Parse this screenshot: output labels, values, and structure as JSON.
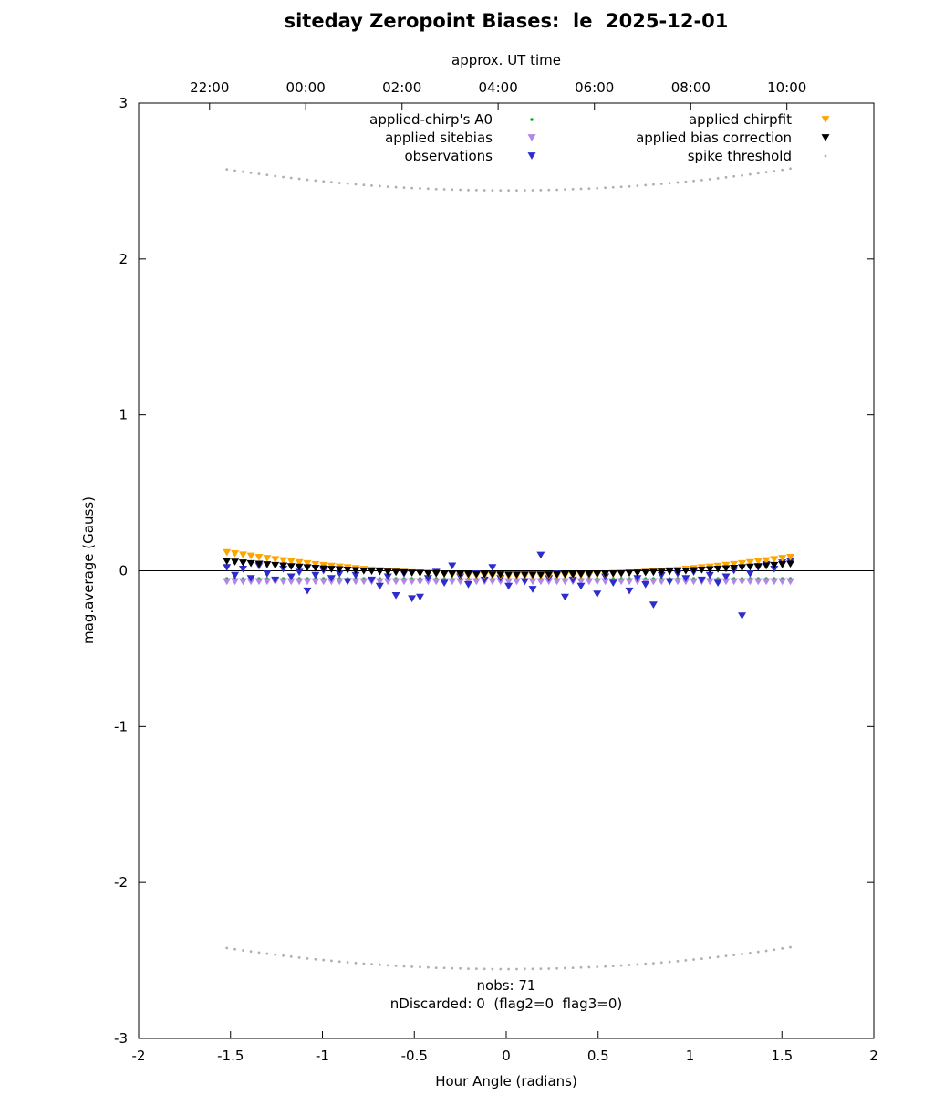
{
  "chart_data": {
    "type": "scatter",
    "title": "siteday Zeropoint Biases:  le  2025-12-01",
    "top_axis": {
      "label": "approx. UT time",
      "ticks": [
        {
          "label": "22:00",
          "x": -1.614
        },
        {
          "label": "00:00",
          "x": -1.091
        },
        {
          "label": "02:00",
          "x": -0.567
        },
        {
          "label": "04:00",
          "x": -0.044
        },
        {
          "label": "06:00",
          "x": 0.48
        },
        {
          "label": "08:00",
          "x": 1.004
        },
        {
          "label": "10:00",
          "x": 1.527
        }
      ]
    },
    "x_axis": {
      "label": "Hour Angle (radians)",
      "min": -2,
      "max": 2,
      "ticks": [
        -2,
        -1.5,
        -1,
        -0.5,
        0,
        0.5,
        1,
        1.5,
        2
      ],
      "tick_labels": [
        "-2",
        "-1.5",
        "-1",
        "-0.5",
        "0",
        "0.5",
        "1",
        "1.5",
        "2"
      ]
    },
    "y_axis": {
      "label": "mag.average (Gauss)",
      "min": -3,
      "max": 3,
      "ticks": [
        -3,
        -2,
        -1,
        0,
        1,
        2,
        3
      ],
      "tick_labels": [
        "-3",
        "-2",
        "-1",
        "0",
        "1",
        "2",
        "3"
      ]
    },
    "zero_line": true,
    "grid": false,
    "stats": {
      "nobs": 71,
      "nDiscarded": 0,
      "flag2": 0,
      "flag3": 0
    },
    "annotations": [
      "nobs: 71",
      "nDiscarded: 0  (flag2=0  flag3=0)"
    ],
    "x": [
      -1.52,
      -1.476,
      -1.432,
      -1.389,
      -1.345,
      -1.301,
      -1.257,
      -1.213,
      -1.17,
      -1.126,
      -1.082,
      -1.038,
      -0.994,
      -0.951,
      -0.907,
      -0.863,
      -0.819,
      -0.775,
      -0.732,
      -0.688,
      -0.644,
      -0.6,
      -0.556,
      -0.513,
      -0.469,
      -0.425,
      -0.381,
      -0.337,
      -0.294,
      -0.25,
      -0.206,
      -0.162,
      -0.118,
      -0.075,
      -0.031,
      0.013,
      0.057,
      0.101,
      0.144,
      0.188,
      0.232,
      0.276,
      0.32,
      0.363,
      0.407,
      0.451,
      0.495,
      0.539,
      0.582,
      0.626,
      0.67,
      0.714,
      0.758,
      0.801,
      0.845,
      0.889,
      0.933,
      0.977,
      1.02,
      1.064,
      1.108,
      1.152,
      1.196,
      1.239,
      1.283,
      1.327,
      1.371,
      1.415,
      1.458,
      1.502,
      1.546
    ],
    "series": [
      {
        "id": "a0",
        "name": "applied-chirp's A0",
        "marker": "dot",
        "color": "#00b400",
        "size": 1.7,
        "legend_column": 1,
        "y_const": -0.05
      },
      {
        "id": "sitebias",
        "name": "applied sitebias",
        "marker": "triangle-down",
        "color": "#b285ea",
        "size": 4.5,
        "legend_column": 1,
        "y_const": -0.07
      },
      {
        "id": "observations",
        "name": "observations",
        "marker": "triangle-down",
        "color": "#2d2dcc",
        "size": 4.5,
        "legend_column": 1,
        "y": [
          0.02,
          -0.03,
          0.01,
          -0.05,
          0.03,
          -0.02,
          -0.06,
          0.01,
          -0.04,
          -0.01,
          -0.13,
          -0.03,
          0.0,
          -0.05,
          -0.02,
          -0.07,
          -0.03,
          0.0,
          -0.06,
          -0.1,
          -0.04,
          -0.16,
          -0.02,
          -0.18,
          -0.17,
          -0.05,
          -0.01,
          -0.08,
          0.03,
          -0.04,
          -0.09,
          -0.02,
          -0.06,
          0.02,
          -0.05,
          -0.1,
          -0.03,
          -0.07,
          -0.12,
          0.1,
          -0.05,
          -0.02,
          -0.17,
          -0.06,
          -0.1,
          -0.03,
          -0.15,
          -0.04,
          -0.08,
          -0.02,
          -0.13,
          -0.05,
          -0.09,
          -0.22,
          -0.03,
          -0.07,
          -0.02,
          -0.05,
          -0.01,
          -0.06,
          -0.03,
          -0.08,
          -0.04,
          0.0,
          -0.29,
          -0.02,
          0.02,
          0.04,
          0.01,
          0.05,
          0.06
        ]
      },
      {
        "id": "chirpfit",
        "name": "applied chirpfit",
        "marker": "triangle-down",
        "color": "#ffa500",
        "size": 4.5,
        "legend_column": 2,
        "y": [
          0.117,
          0.109,
          0.101,
          0.094,
          0.086,
          0.079,
          0.072,
          0.065,
          0.059,
          0.052,
          0.046,
          0.04,
          0.034,
          0.029,
          0.024,
          0.019,
          0.014,
          0.009,
          0.005,
          0.001,
          -0.003,
          -0.007,
          -0.01,
          -0.013,
          -0.016,
          -0.019,
          -0.022,
          -0.024,
          -0.026,
          -0.028,
          -0.03,
          -0.031,
          -0.032,
          -0.033,
          -0.034,
          -0.035,
          -0.035,
          -0.035,
          -0.035,
          -0.035,
          -0.034,
          -0.033,
          -0.032,
          -0.031,
          -0.03,
          -0.028,
          -0.026,
          -0.024,
          -0.022,
          -0.019,
          -0.016,
          -0.013,
          -0.01,
          -0.007,
          -0.003,
          0.001,
          0.005,
          0.01,
          0.014,
          0.019,
          0.024,
          0.029,
          0.035,
          0.04,
          0.046,
          0.052,
          0.059,
          0.065,
          0.072,
          0.079,
          0.086
        ]
      },
      {
        "id": "bias",
        "name": "applied bias correction",
        "marker": "triangle-down",
        "color": "#000000",
        "size": 4.5,
        "legend_column": 2,
        "y": [
          0.06,
          0.055,
          0.05,
          0.046,
          0.042,
          0.038,
          0.034,
          0.03,
          0.026,
          0.023,
          0.019,
          0.016,
          0.012,
          0.009,
          0.007,
          0.004,
          0.001,
          -0.002,
          -0.004,
          -0.007,
          -0.009,
          -0.011,
          -0.013,
          -0.015,
          -0.016,
          -0.018,
          -0.019,
          -0.021,
          -0.022,
          -0.023,
          -0.024,
          -0.025,
          -0.025,
          -0.026,
          -0.026,
          -0.027,
          -0.027,
          -0.027,
          -0.027,
          -0.027,
          -0.026,
          -0.026,
          -0.025,
          -0.025,
          -0.024,
          -0.023,
          -0.022,
          -0.021,
          -0.019,
          -0.018,
          -0.016,
          -0.015,
          -0.013,
          -0.011,
          -0.009,
          -0.006,
          -0.004,
          -0.002,
          0.001,
          0.004,
          0.007,
          0.01,
          0.013,
          0.016,
          0.019,
          0.023,
          0.026,
          0.03,
          0.034,
          0.038,
          0.042
        ]
      },
      {
        "id": "spike-upper",
        "name": "spike threshold",
        "marker": "dot",
        "color": "#b0b0b0",
        "size": 1.4,
        "legend_column": 2,
        "y": [
          2.575,
          2.567,
          2.56,
          2.553,
          2.546,
          2.539,
          2.532,
          2.526,
          2.52,
          2.514,
          2.508,
          2.503,
          2.498,
          2.493,
          2.488,
          2.484,
          2.479,
          2.475,
          2.471,
          2.468,
          2.464,
          2.461,
          2.458,
          2.455,
          2.453,
          2.451,
          2.448,
          2.447,
          2.445,
          2.444,
          2.442,
          2.442,
          2.441,
          2.44,
          2.44,
          2.44,
          2.44,
          2.441,
          2.441,
          2.442,
          2.443,
          2.444,
          2.446,
          2.448,
          2.45,
          2.452,
          2.454,
          2.457,
          2.46,
          2.463,
          2.466,
          2.47,
          2.474,
          2.478,
          2.482,
          2.486,
          2.491,
          2.496,
          2.501,
          2.506,
          2.512,
          2.518,
          2.524,
          2.53,
          2.536,
          2.543,
          2.55,
          2.557,
          2.564,
          2.572,
          2.58
        ]
      },
      {
        "id": "spike-lower",
        "name": "spike threshold",
        "marker": "dot",
        "color": "#b0b0b0",
        "size": 1.4,
        "legend_column": null,
        "y": [
          -2.42,
          -2.428,
          -2.435,
          -2.442,
          -2.449,
          -2.456,
          -2.463,
          -2.469,
          -2.475,
          -2.481,
          -2.487,
          -2.492,
          -2.497,
          -2.502,
          -2.507,
          -2.511,
          -2.516,
          -2.52,
          -2.524,
          -2.527,
          -2.531,
          -2.534,
          -2.537,
          -2.54,
          -2.542,
          -2.544,
          -2.547,
          -2.548,
          -2.55,
          -2.551,
          -2.553,
          -2.553,
          -2.554,
          -2.555,
          -2.555,
          -2.555,
          -2.555,
          -2.554,
          -2.554,
          -2.553,
          -2.552,
          -2.551,
          -2.549,
          -2.547,
          -2.545,
          -2.543,
          -2.541,
          -2.538,
          -2.535,
          -2.532,
          -2.529,
          -2.525,
          -2.521,
          -2.518,
          -2.513,
          -2.509,
          -2.504,
          -2.499,
          -2.494,
          -2.489,
          -2.483,
          -2.477,
          -2.471,
          -2.465,
          -2.459,
          -2.452,
          -2.445,
          -2.438,
          -2.431,
          -2.423,
          -2.415
        ]
      }
    ]
  }
}
